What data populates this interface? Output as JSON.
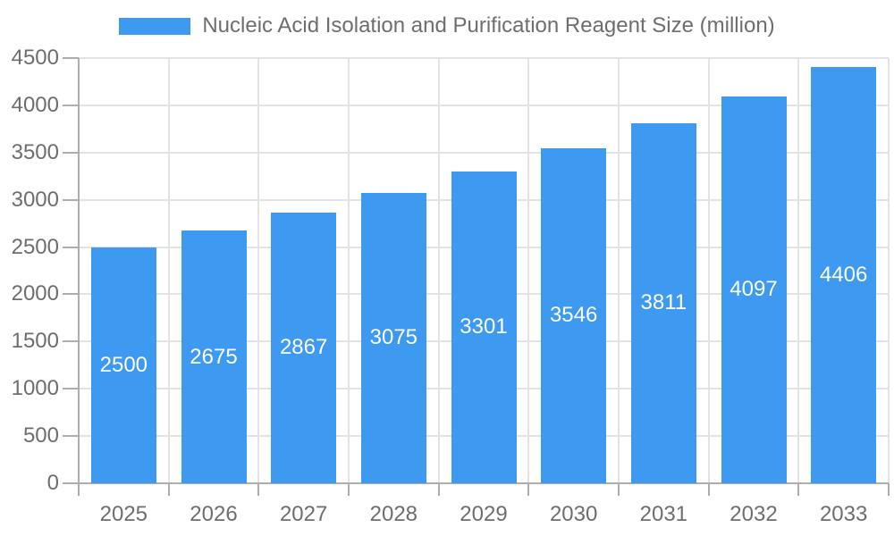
{
  "chart_data": {
    "type": "bar",
    "title": "Nucleic Acid Isolation and Purification Reagent Size (million)",
    "categories": [
      "2025",
      "2026",
      "2027",
      "2028",
      "2029",
      "2030",
      "2031",
      "2032",
      "2033"
    ],
    "values": [
      2500,
      2675,
      2867,
      3075,
      3301,
      3546,
      3811,
      4097,
      4406
    ],
    "xlabel": "",
    "ylabel": "",
    "ylim": [
      0,
      4500
    ],
    "ytick_step": 500,
    "yticks": [
      0,
      500,
      1000,
      1500,
      2000,
      2500,
      3000,
      3500,
      4000,
      4500
    ],
    "grid": true,
    "legend_position": "top",
    "bar_color": "#3D9AF0",
    "bar_label_color": "#ffffff",
    "grid_color": "#e3e3e3",
    "axis_color": "#adadad",
    "tick_label_color": "#6e6e6e"
  }
}
